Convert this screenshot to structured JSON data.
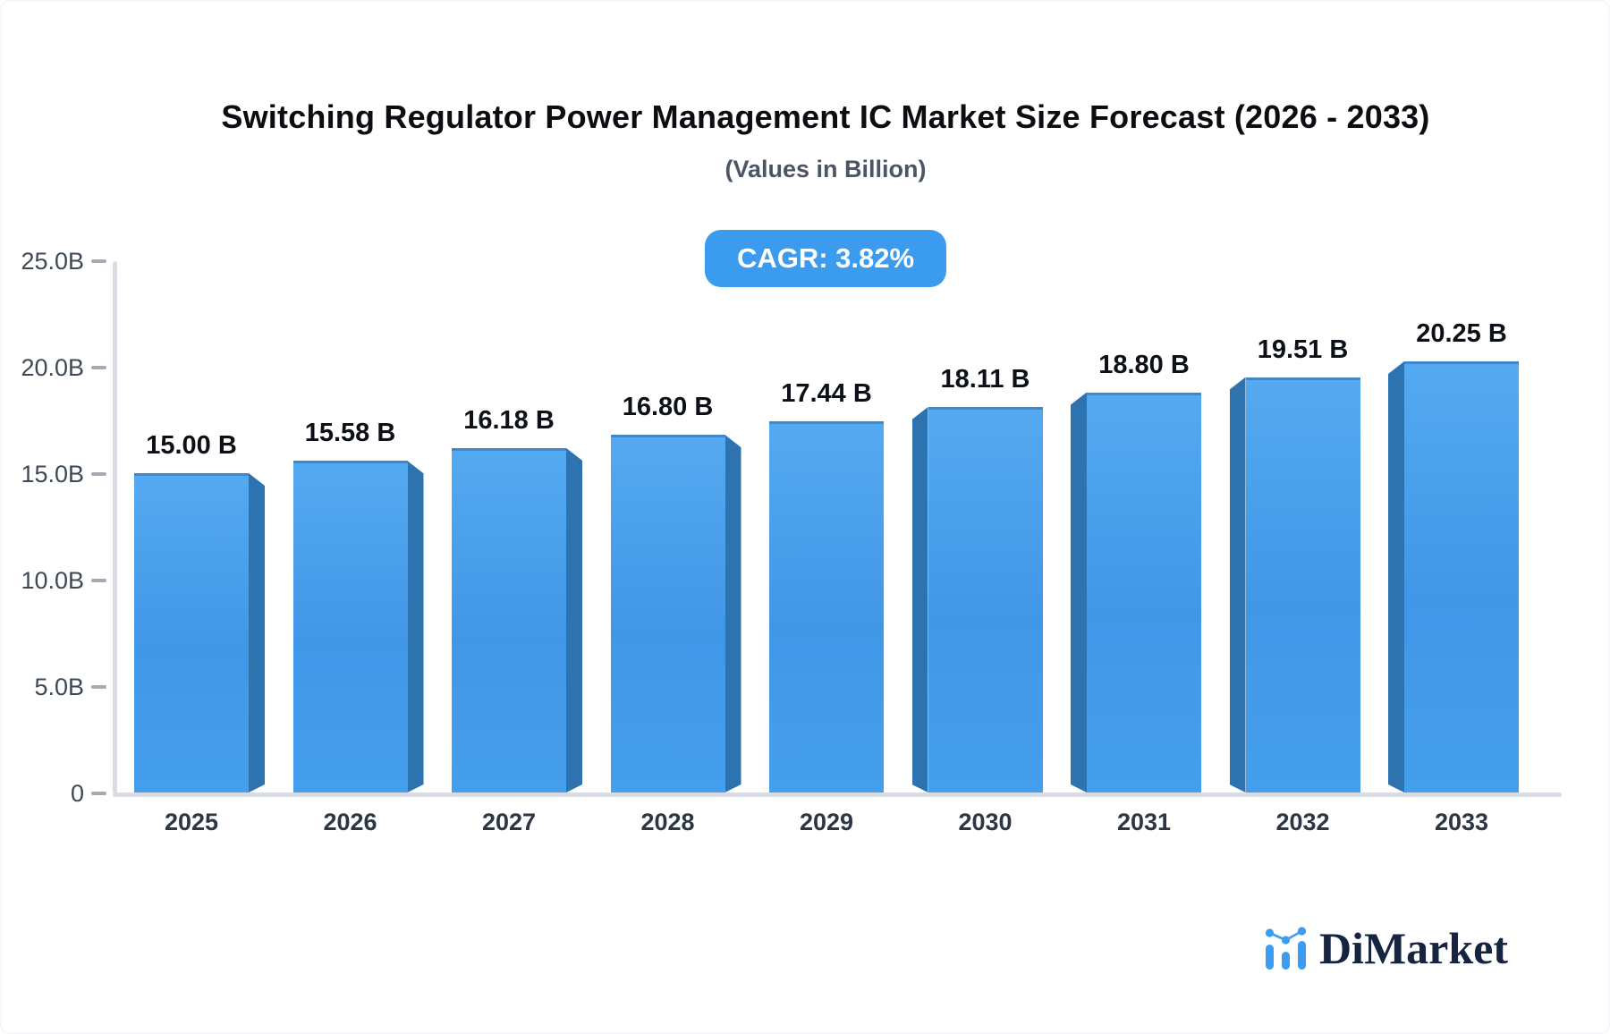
{
  "header": {
    "cagr_badge": "CAGR: 3.82%"
  },
  "chart_data": {
    "type": "bar",
    "title": "Switching Regulator Power Management IC Market Size Forecast (2026 - 2033)",
    "subtitle": "(Values in Billion)",
    "cagr_label": "CAGR: 3.82%",
    "cagr_percent": 3.82,
    "unit": "Billion",
    "categories": [
      "2025",
      "2026",
      "2027",
      "2028",
      "2029",
      "2030",
      "2031",
      "2032",
      "2033"
    ],
    "values": [
      15.0,
      15.58,
      16.18,
      16.8,
      17.44,
      18.11,
      18.8,
      19.51,
      20.25
    ],
    "bar_labels": [
      "15.00 B",
      "15.58 B",
      "16.18 B",
      "16.80 B",
      "17.44 B",
      "18.11 B",
      "18.80 B",
      "19.51 B",
      "20.25 B"
    ],
    "y_tick_labels": [
      "25.0B",
      "20.0B",
      "15.0B",
      "10.0B",
      "5.0B",
      "0"
    ],
    "y_tick_values": [
      25,
      20,
      15,
      10,
      5,
      0
    ],
    "ylim": [
      0,
      25
    ],
    "xlabel": "",
    "ylabel": "",
    "grid": false,
    "legend": "none",
    "bar_label_position": "above",
    "style": "3d-bars, side panels face toward center, no gridlines",
    "colors": {
      "bar_face": "#459eec",
      "bar_face_light": "#54a9f0",
      "bar_face_dark": "#4197e7",
      "bar_side": "#2d73b0",
      "bar_top_stroke": "#3e88cb",
      "badge_bg": "#3b9cef",
      "badge_text": "#ffffff",
      "axis_line": "#d9dde3",
      "tick_dash": "#a3abb5",
      "title_text": "#0c0d10",
      "subtitle_text": "#4b5563",
      "value_text": "#0d1117",
      "year_text": "#2c3644",
      "y_label_text": "#3e4956"
    }
  },
  "footer": {
    "logo_text": "DiMarket",
    "logo_icon": "mini-bar-chart-trend-icon",
    "logo_icon_color": "#3b9df2",
    "logo_text_color": "#152440"
  }
}
